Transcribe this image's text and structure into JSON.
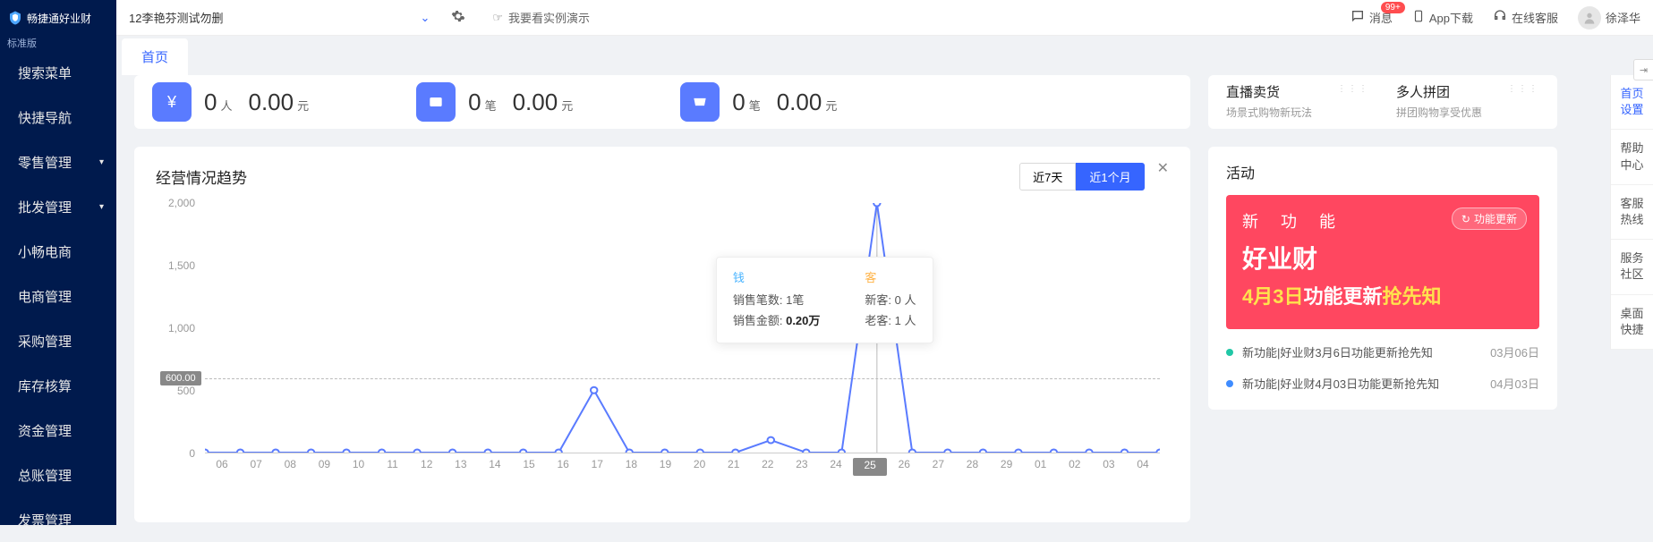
{
  "brand": {
    "name": "畅捷通好业财",
    "version": "标准版"
  },
  "sidebar": {
    "items": [
      {
        "label": "搜索菜单",
        "caret": false
      },
      {
        "label": "快捷导航",
        "caret": false
      },
      {
        "label": "零售管理",
        "caret": true
      },
      {
        "label": "批发管理",
        "caret": true
      },
      {
        "label": "小畅电商",
        "caret": false
      },
      {
        "label": "电商管理",
        "caret": false
      },
      {
        "label": "采购管理",
        "caret": false
      },
      {
        "label": "库存核算",
        "caret": false
      },
      {
        "label": "资金管理",
        "caret": false
      },
      {
        "label": "总账管理",
        "caret": false
      },
      {
        "label": "发票管理",
        "caret": false
      }
    ]
  },
  "topbar": {
    "org": "12李艳芬测试勿删",
    "demo": "我要看实例演示",
    "msg": {
      "label": "消息",
      "badge": "99+"
    },
    "app": "App下载",
    "service": "在线客服",
    "user": "徐泽华"
  },
  "tabs": {
    "home": "首页"
  },
  "kpi": [
    {
      "icon_bg": "#5a7bff",
      "v1": "0",
      "u1": "人",
      "v2": "0.00",
      "u2": "元"
    },
    {
      "icon_bg": "#5a7bff",
      "v1": "0",
      "u1": "笔",
      "v2": "0.00",
      "u2": "元"
    },
    {
      "icon_bg": "#5a7bff",
      "v1": "0",
      "u1": "笔",
      "v2": "0.00",
      "u2": "元"
    }
  ],
  "chart": {
    "title": "经营情况趋势",
    "range7": "近7天",
    "range30": "近1个月",
    "y_ticks": [
      "0",
      "500",
      "1,000",
      "1,500",
      "2,000"
    ],
    "y_max": 2000,
    "ref_value": 600,
    "ref_label": "600.00",
    "x_labels": [
      "06",
      "07",
      "08",
      "09",
      "10",
      "11",
      "12",
      "13",
      "14",
      "15",
      "16",
      "17",
      "18",
      "19",
      "20",
      "21",
      "22",
      "23",
      "24",
      "25",
      "26",
      "27",
      "28",
      "29",
      "01",
      "02",
      "03",
      "04"
    ],
    "highlight_index": 19,
    "series": {
      "color": "#5a7bff",
      "marker_color": "#5a7bff",
      "values": [
        0,
        0,
        0,
        0,
        0,
        0,
        0,
        0,
        0,
        0,
        0,
        500,
        0,
        0,
        0,
        0,
        100,
        0,
        0,
        2000,
        0,
        0,
        0,
        0,
        0,
        0,
        0,
        0
      ]
    },
    "tooltip": {
      "money_title": "钱",
      "money_title_color": "#47b3ff",
      "cust_title": "客",
      "cust_title_color": "#ffb347",
      "sale_count_label": "销售笔数:",
      "sale_count_value": "1笔",
      "sale_amount_label": "销售金额:",
      "sale_amount_value": "0.20万",
      "new_cust_label": "新客:",
      "new_cust_value": "0 人",
      "old_cust_label": "老客:",
      "old_cust_value": "1 人"
    }
  },
  "promo": {
    "live": {
      "title": "直播卖货",
      "sub": "场景式购物新玩法"
    },
    "group": {
      "title": "多人拼团",
      "sub": "拼团购物享受优惠"
    }
  },
  "activity": {
    "title": "活动",
    "banner": {
      "tag": "新 功 能",
      "update_btn": "功能更新",
      "line1": "好业财",
      "line2_a": "4月3日",
      "line2_b": "功能更新",
      "line2_c": "抢先知"
    },
    "news": [
      {
        "dot": "#21c7a6",
        "text": "新功能|好业财3月6日功能更新抢先知",
        "date": "03月06日"
      },
      {
        "dot": "#3f8cff",
        "text": "新功能|好业财4月03日功能更新抢先知",
        "date": "04月03日"
      }
    ]
  },
  "rail": {
    "items": [
      {
        "label": "首页设置",
        "active": true
      },
      {
        "label": "帮助中心",
        "active": false
      },
      {
        "label": "客服热线",
        "active": false
      },
      {
        "label": "服务社区",
        "active": false
      },
      {
        "label": "桌面快捷",
        "active": false
      }
    ]
  }
}
